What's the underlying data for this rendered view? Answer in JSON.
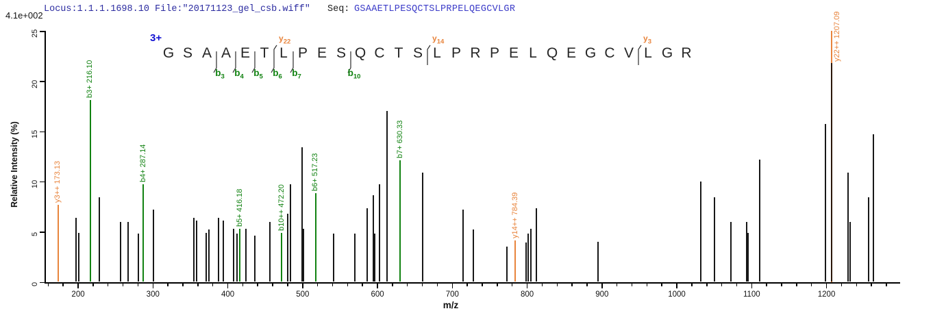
{
  "header": {
    "scale_label": "4.1e+002",
    "locus_file": "Locus:1.1.1.1698.10 File:\"20171123_gel_csb.wiff\"",
    "seq_label": "Seq:",
    "sequence": "GSAAETLPESQCTSLPRPELQEGCVLGR"
  },
  "peptide_panel": {
    "charge_label": "3+",
    "residues": "GSAAETLPESQCTSLPRPELQEGCVLGR",
    "b_ions": [
      {
        "num": "3",
        "after_residue": 3
      },
      {
        "num": "4",
        "after_residue": 4
      },
      {
        "num": "5",
        "after_residue": 5
      },
      {
        "num": "6",
        "after_residue": 6
      },
      {
        "num": "7",
        "after_residue": 7
      },
      {
        "num": "10",
        "after_residue": 10
      }
    ],
    "y_ions": [
      {
        "num": "22",
        "after_residue": 6
      },
      {
        "num": "14",
        "after_residue": 14
      },
      {
        "num": "3",
        "after_residue": 25
      }
    ]
  },
  "colors": {
    "b_ion_green": "#118211",
    "y_ion_orange": "#E8843C",
    "peak_black": "#171717",
    "y22_overlay_dark": "#2A1708",
    "header_navy": "#2B2BA0",
    "sequence_blue": "#3B3BC8",
    "charge_blue": "#1212D2",
    "axis_black": "#000000"
  },
  "chart_data": {
    "type": "bar",
    "subtype": "mass-spectrum-stick-plot",
    "title": "MS/MS fragment ion spectrum",
    "xlabel": "m/z",
    "ylabel": "Relative  Intensity (%)",
    "xlim": [
      156.5,
      1296.5
    ],
    "ylim": [
      0,
      25
    ],
    "x_major_ticks": [
      200,
      300,
      400,
      500,
      600,
      700,
      800,
      900,
      1000,
      1100,
      1200
    ],
    "x_minor_tick_step": 20,
    "x_minor_tick_range": [
      160,
      1280
    ],
    "y_ticks": [
      0,
      5,
      10,
      15,
      20,
      25
    ],
    "grid": false,
    "legend": false,
    "intensity_scale_label": "4.1e+002",
    "annotated_ions": [
      {
        "ion": "y3++",
        "mz": 173.13,
        "series": "y"
      },
      {
        "ion": "b3+",
        "mz": 216.1,
        "series": "b"
      },
      {
        "ion": "b4+",
        "mz": 287.14,
        "series": "b"
      },
      {
        "ion": "b5+",
        "mz": 416.18,
        "series": "b"
      },
      {
        "ion": "b10++",
        "mz": 472.2,
        "series": "b"
      },
      {
        "ion": "b6+",
        "mz": 517.23,
        "series": "b"
      },
      {
        "ion": "b7+",
        "mz": 630.33,
        "series": "b"
      },
      {
        "ion": "y14++",
        "mz": 784.39,
        "series": "y"
      },
      {
        "ion": "y22++",
        "mz": 1207.09,
        "series": "y"
      }
    ],
    "peaks": [
      {
        "mz": 173.13,
        "intensity": 7.7,
        "type": "y",
        "label": "y3++ 173.13"
      },
      {
        "mz": 197.5,
        "intensity": 6.4,
        "type": "k"
      },
      {
        "mz": 201.2,
        "intensity": 4.9,
        "type": "k"
      },
      {
        "mz": 216.1,
        "intensity": 18.1,
        "type": "b",
        "label": "b3+ 216.10"
      },
      {
        "mz": 228.1,
        "intensity": 8.4,
        "type": "k"
      },
      {
        "mz": 257.0,
        "intensity": 6.0,
        "type": "k"
      },
      {
        "mz": 266.7,
        "intensity": 6.0,
        "type": "k"
      },
      {
        "mz": 280.8,
        "intensity": 4.8,
        "type": "k"
      },
      {
        "mz": 287.14,
        "intensity": 9.7,
        "type": "b",
        "label": "b4+ 287.14"
      },
      {
        "mz": 300.7,
        "intensity": 7.2,
        "type": "k"
      },
      {
        "mz": 354.7,
        "intensity": 6.4,
        "type": "k"
      },
      {
        "mz": 358.7,
        "intensity": 6.1,
        "type": "k"
      },
      {
        "mz": 370.9,
        "intensity": 4.9,
        "type": "k"
      },
      {
        "mz": 374.5,
        "intensity": 5.2,
        "type": "k"
      },
      {
        "mz": 387.7,
        "intensity": 6.4,
        "type": "k"
      },
      {
        "mz": 394.4,
        "intensity": 6.1,
        "type": "k"
      },
      {
        "mz": 408.1,
        "intensity": 5.3,
        "type": "k"
      },
      {
        "mz": 412.1,
        "intensity": 4.8,
        "type": "k"
      },
      {
        "mz": 416.18,
        "intensity": 5.3,
        "type": "b",
        "label": "b5+ 416.18"
      },
      {
        "mz": 424.4,
        "intensity": 5.3,
        "type": "k"
      },
      {
        "mz": 436.0,
        "intensity": 4.6,
        "type": "k"
      },
      {
        "mz": 456.1,
        "intensity": 6.0,
        "type": "k"
      },
      {
        "mz": 472.2,
        "intensity": 4.9,
        "type": "b",
        "label": "b10++ 472.20"
      },
      {
        "mz": 480.5,
        "intensity": 6.8,
        "type": "k"
      },
      {
        "mz": 483.3,
        "intensity": 9.7,
        "type": "k"
      },
      {
        "mz": 499.7,
        "intensity": 13.4,
        "type": "k"
      },
      {
        "mz": 501.5,
        "intensity": 5.3,
        "type": "k"
      },
      {
        "mz": 517.23,
        "intensity": 8.8,
        "type": "b",
        "label": "b6+ 517.23"
      },
      {
        "mz": 541.2,
        "intensity": 4.8,
        "type": "k"
      },
      {
        "mz": 569.3,
        "intensity": 4.8,
        "type": "k"
      },
      {
        "mz": 585.9,
        "intensity": 7.3,
        "type": "k"
      },
      {
        "mz": 594.2,
        "intensity": 8.6,
        "type": "k"
      },
      {
        "mz": 596.3,
        "intensity": 4.8,
        "type": "k"
      },
      {
        "mz": 602.8,
        "intensity": 9.7,
        "type": "k"
      },
      {
        "mz": 612.8,
        "intensity": 17.0,
        "type": "k"
      },
      {
        "mz": 630.33,
        "intensity": 12.1,
        "type": "b",
        "label": "b7+ 630.33"
      },
      {
        "mz": 660.8,
        "intensity": 10.9,
        "type": "k"
      },
      {
        "mz": 714.2,
        "intensity": 7.2,
        "type": "k"
      },
      {
        "mz": 727.9,
        "intensity": 5.2,
        "type": "k"
      },
      {
        "mz": 772.8,
        "intensity": 3.5,
        "type": "k"
      },
      {
        "mz": 784.39,
        "intensity": 4.1,
        "type": "y",
        "label": "y14++ 784.39"
      },
      {
        "mz": 798.7,
        "intensity": 3.9,
        "type": "k"
      },
      {
        "mz": 801.2,
        "intensity": 4.8,
        "type": "k"
      },
      {
        "mz": 805.1,
        "intensity": 5.3,
        "type": "k"
      },
      {
        "mz": 811.9,
        "intensity": 7.3,
        "type": "k"
      },
      {
        "mz": 894.8,
        "intensity": 4.0,
        "type": "k"
      },
      {
        "mz": 1031.6,
        "intensity": 10.0,
        "type": "k"
      },
      {
        "mz": 1049.9,
        "intensity": 8.4,
        "type": "k"
      },
      {
        "mz": 1071.9,
        "intensity": 6.0,
        "type": "k"
      },
      {
        "mz": 1093.2,
        "intensity": 6.0,
        "type": "k"
      },
      {
        "mz": 1095.5,
        "intensity": 4.9,
        "type": "k"
      },
      {
        "mz": 1110.9,
        "intensity": 12.2,
        "type": "k"
      },
      {
        "mz": 1198.5,
        "intensity": 15.7,
        "type": "k"
      },
      {
        "mz": 1207.09,
        "intensity": 21.8,
        "type": "y",
        "label": "y22++ 1207.09",
        "marker_top": 25.0
      },
      {
        "mz": 1229.1,
        "intensity": 10.9,
        "type": "k"
      },
      {
        "mz": 1231.5,
        "intensity": 6.0,
        "type": "k"
      },
      {
        "mz": 1256.6,
        "intensity": 8.4,
        "type": "k"
      },
      {
        "mz": 1262.7,
        "intensity": 14.7,
        "type": "k"
      }
    ]
  }
}
